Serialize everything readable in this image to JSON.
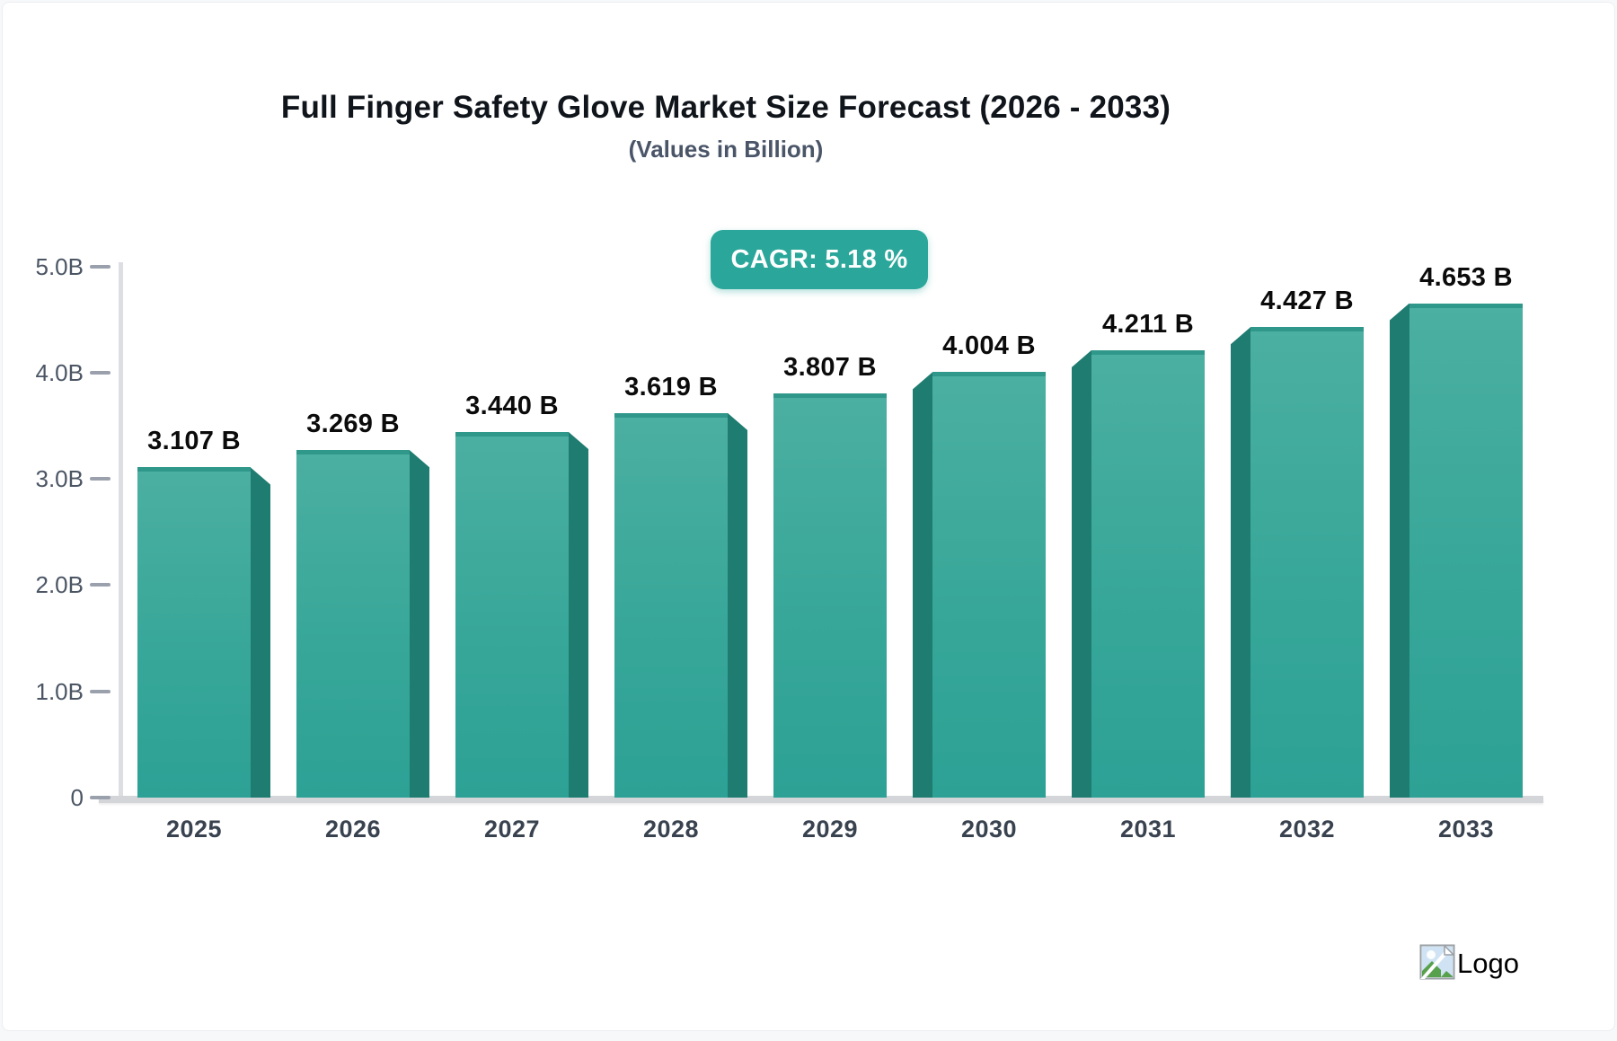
{
  "header": {
    "title": "Full Finger Safety Glove Market Size Forecast (2026 - 2033)",
    "subtitle": "(Values in Billion)",
    "cagr_label": "CAGR: 5.18 %"
  },
  "chart_data": {
    "type": "bar",
    "title": "Full Finger Safety Glove Market Size Forecast (2026 - 2033)",
    "subtitle": "(Values in Billion)",
    "categories": [
      "2025",
      "2026",
      "2027",
      "2028",
      "2029",
      "2030",
      "2031",
      "2032",
      "2033"
    ],
    "values": [
      3.107,
      3.269,
      3.44,
      3.619,
      3.807,
      4.004,
      4.211,
      4.427,
      4.653
    ],
    "value_labels": [
      "3.107 B",
      "3.269 B",
      "3.440 B",
      "3.619 B",
      "3.807 B",
      "4.004 B",
      "4.211 B",
      "4.427 B",
      "4.653 B"
    ],
    "y_tick_labels": [
      "5.0B",
      "4.0B",
      "3.0B",
      "2.0B",
      "1.0B",
      "0"
    ],
    "ylim": [
      0,
      5
    ],
    "cagr_text": "CAGR: 5.18 %",
    "legend": "none",
    "grid": "off",
    "colors": {
      "bar_front": "#37a799",
      "bar_side": "#1f7c71",
      "bar_top_cap": "#30988b",
      "badge": "#2aa79a",
      "axis_line": "#dcdee2",
      "baseline": "#d3d5d9",
      "tick": "#9aa1ad",
      "y_label_text": "#4b5564",
      "x_label_text": "#39424f",
      "value_label_text": "#0b0b0c"
    }
  },
  "footer": {
    "logo_text": "Logo"
  }
}
